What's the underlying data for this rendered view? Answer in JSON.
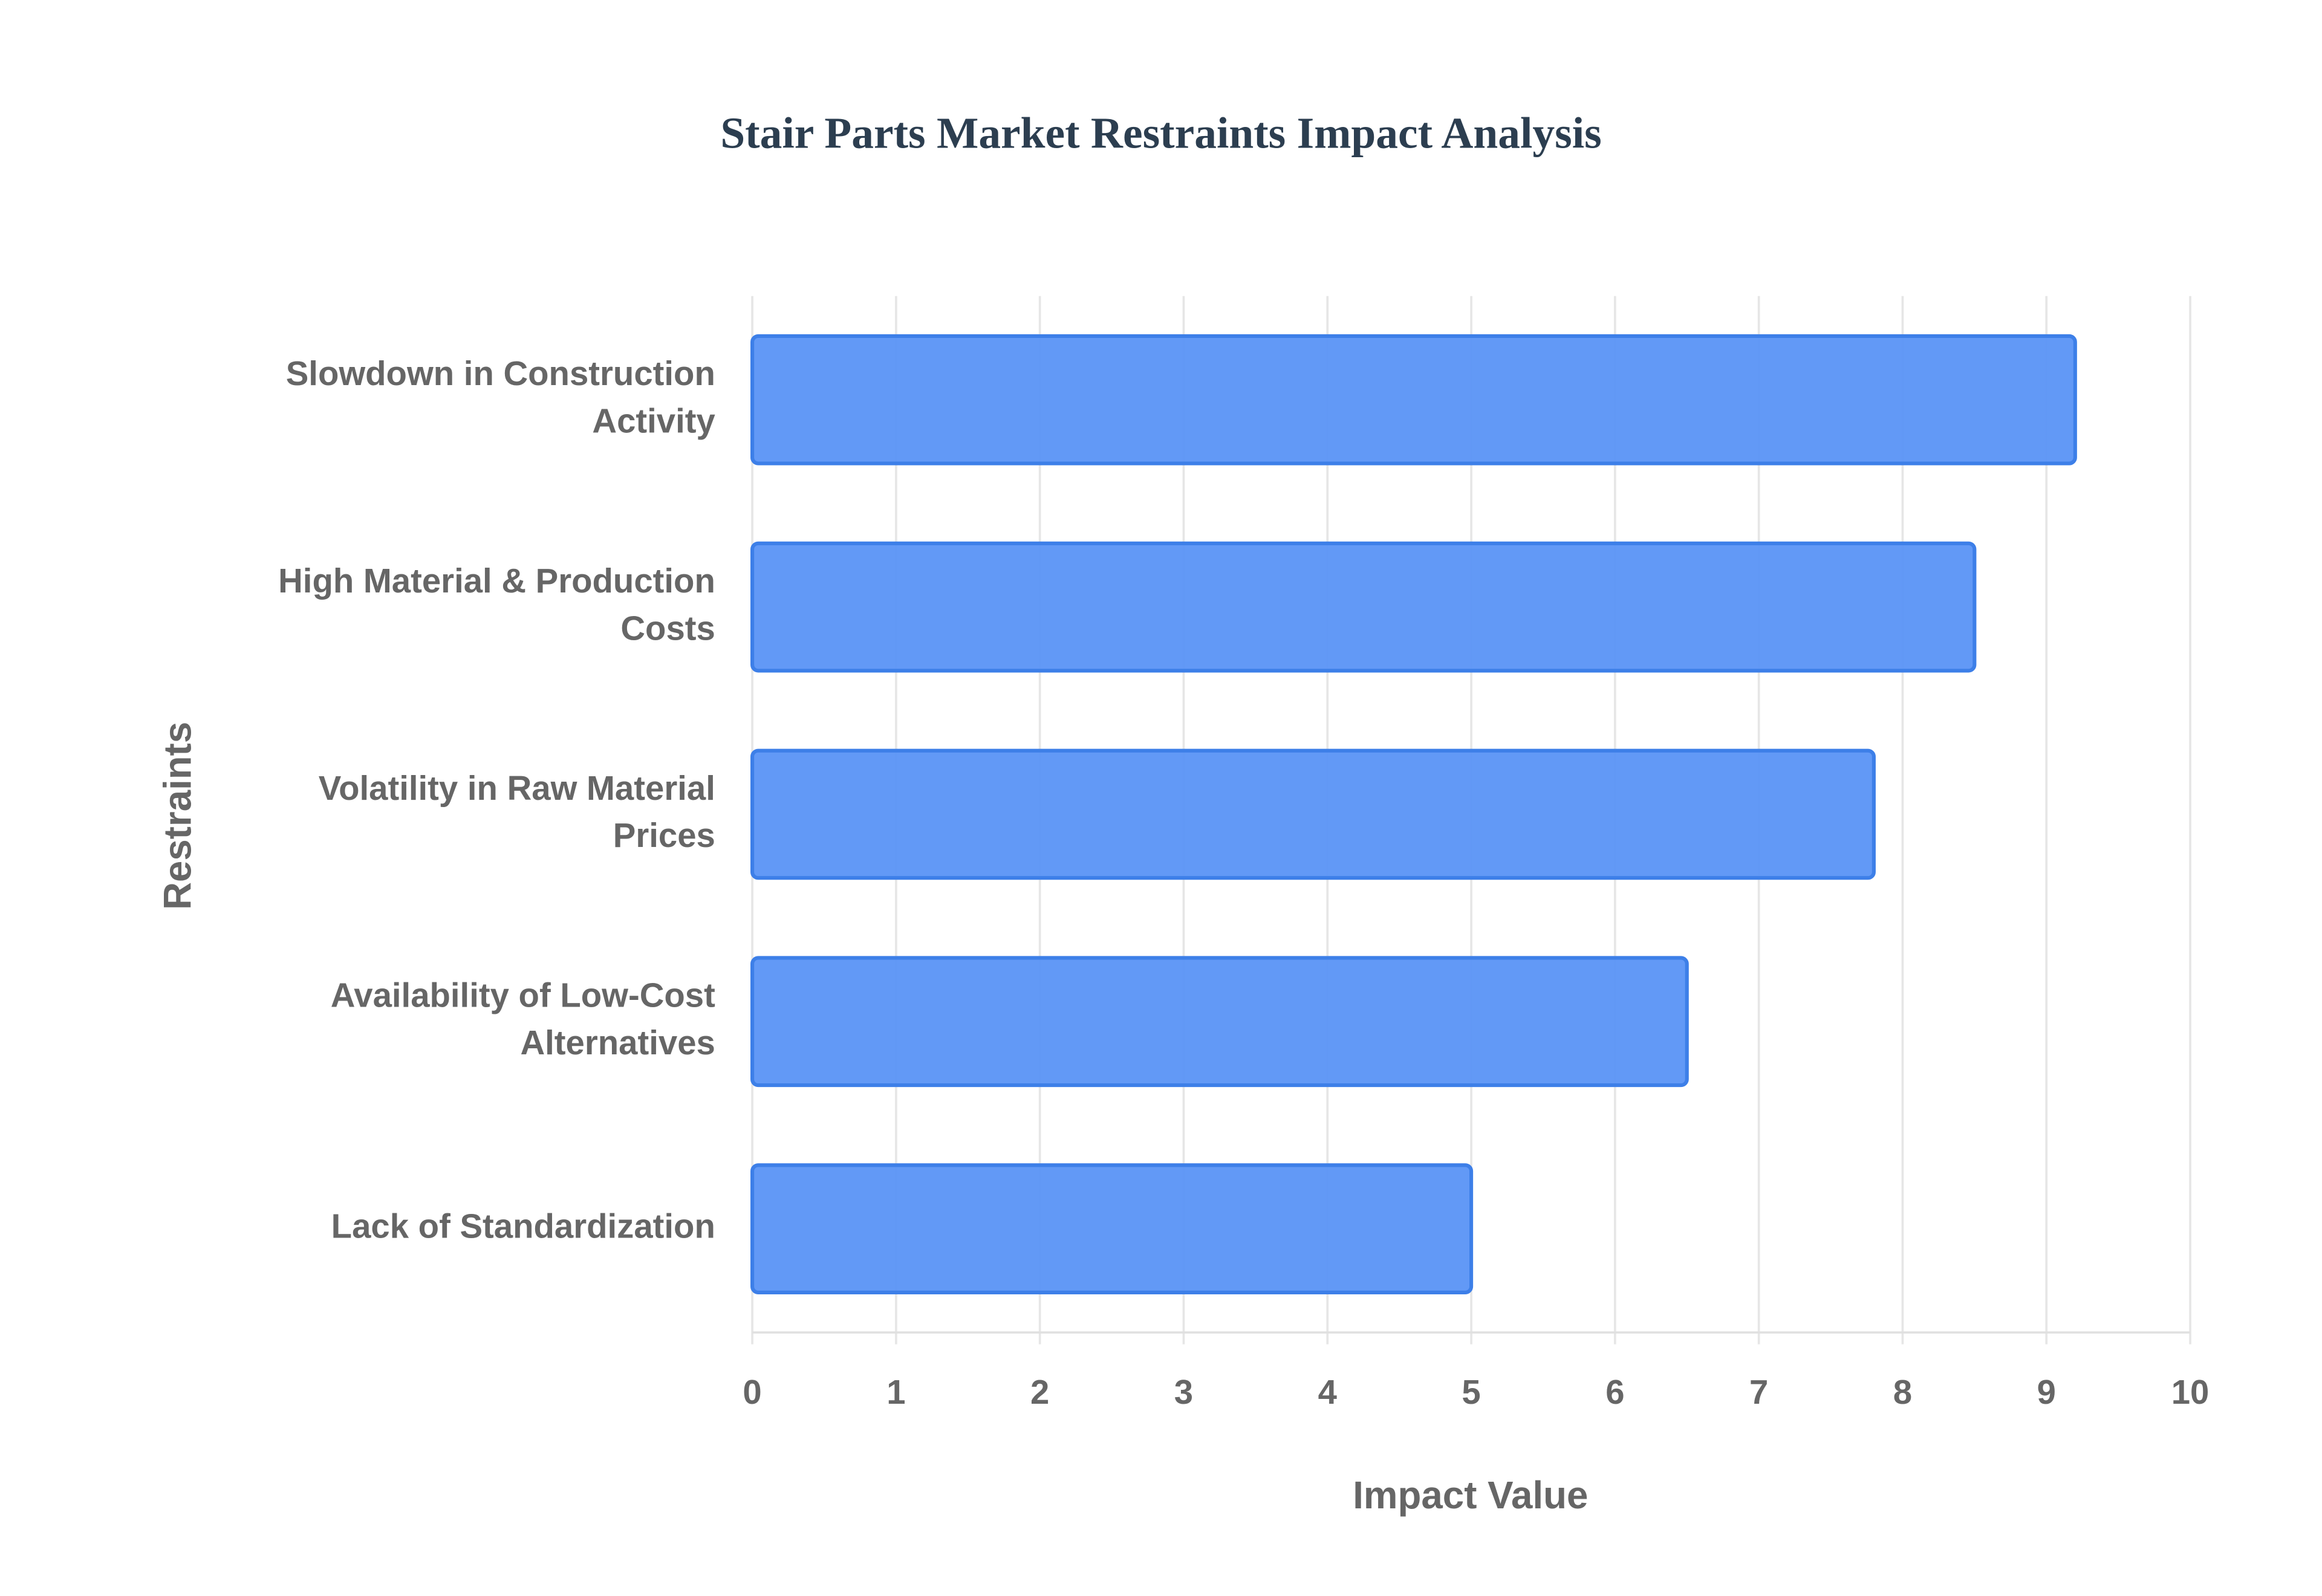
{
  "chart_data": {
    "type": "bar",
    "orientation": "horizontal",
    "title": "Stair Parts Market Restraints Impact Analysis",
    "x_label": "Impact Value",
    "y_label": "Restraints",
    "categories": [
      "Slowdown in Construction Activity",
      "High Material & Production Costs",
      "Volatility in Raw Material Prices",
      "Availability of Low-Cost Alternatives",
      "Lack of Standardization"
    ],
    "values": [
      9.2,
      8.5,
      7.8,
      6.5,
      5.0
    ],
    "color": "#5a93f5",
    "xlim": [
      0,
      10
    ],
    "xticks": [
      0,
      1,
      2,
      3,
      4,
      5,
      6,
      7,
      8,
      9,
      10
    ],
    "grid": true
  }
}
